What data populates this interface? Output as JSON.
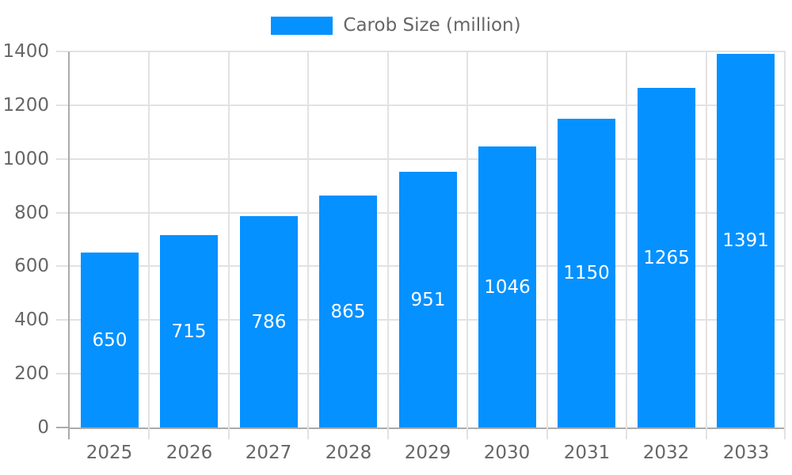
{
  "chart_data": {
    "type": "bar",
    "title": "",
    "series_name": "Carob Size (million)",
    "categories": [
      "2025",
      "2026",
      "2027",
      "2028",
      "2029",
      "2030",
      "2031",
      "2032",
      "2033"
    ],
    "values": [
      650,
      715,
      786,
      865,
      951,
      1046,
      1150,
      1265,
      1391
    ],
    "xlabel": "",
    "ylabel": "",
    "ylim": [
      0,
      1400
    ],
    "yticks": [
      0,
      200,
      400,
      600,
      800,
      1000,
      1200,
      1400
    ],
    "grid": true,
    "legend_position": "top-center",
    "value_labels_position": "inside-center",
    "colors": {
      "bar": "#0591ff",
      "bar_value_text": "#ffffff",
      "tick_text": "#666666",
      "legend_text": "#666666",
      "gridline": "#e2e2e2",
      "axis_line": "#ababab",
      "background": "#ffffff"
    }
  }
}
